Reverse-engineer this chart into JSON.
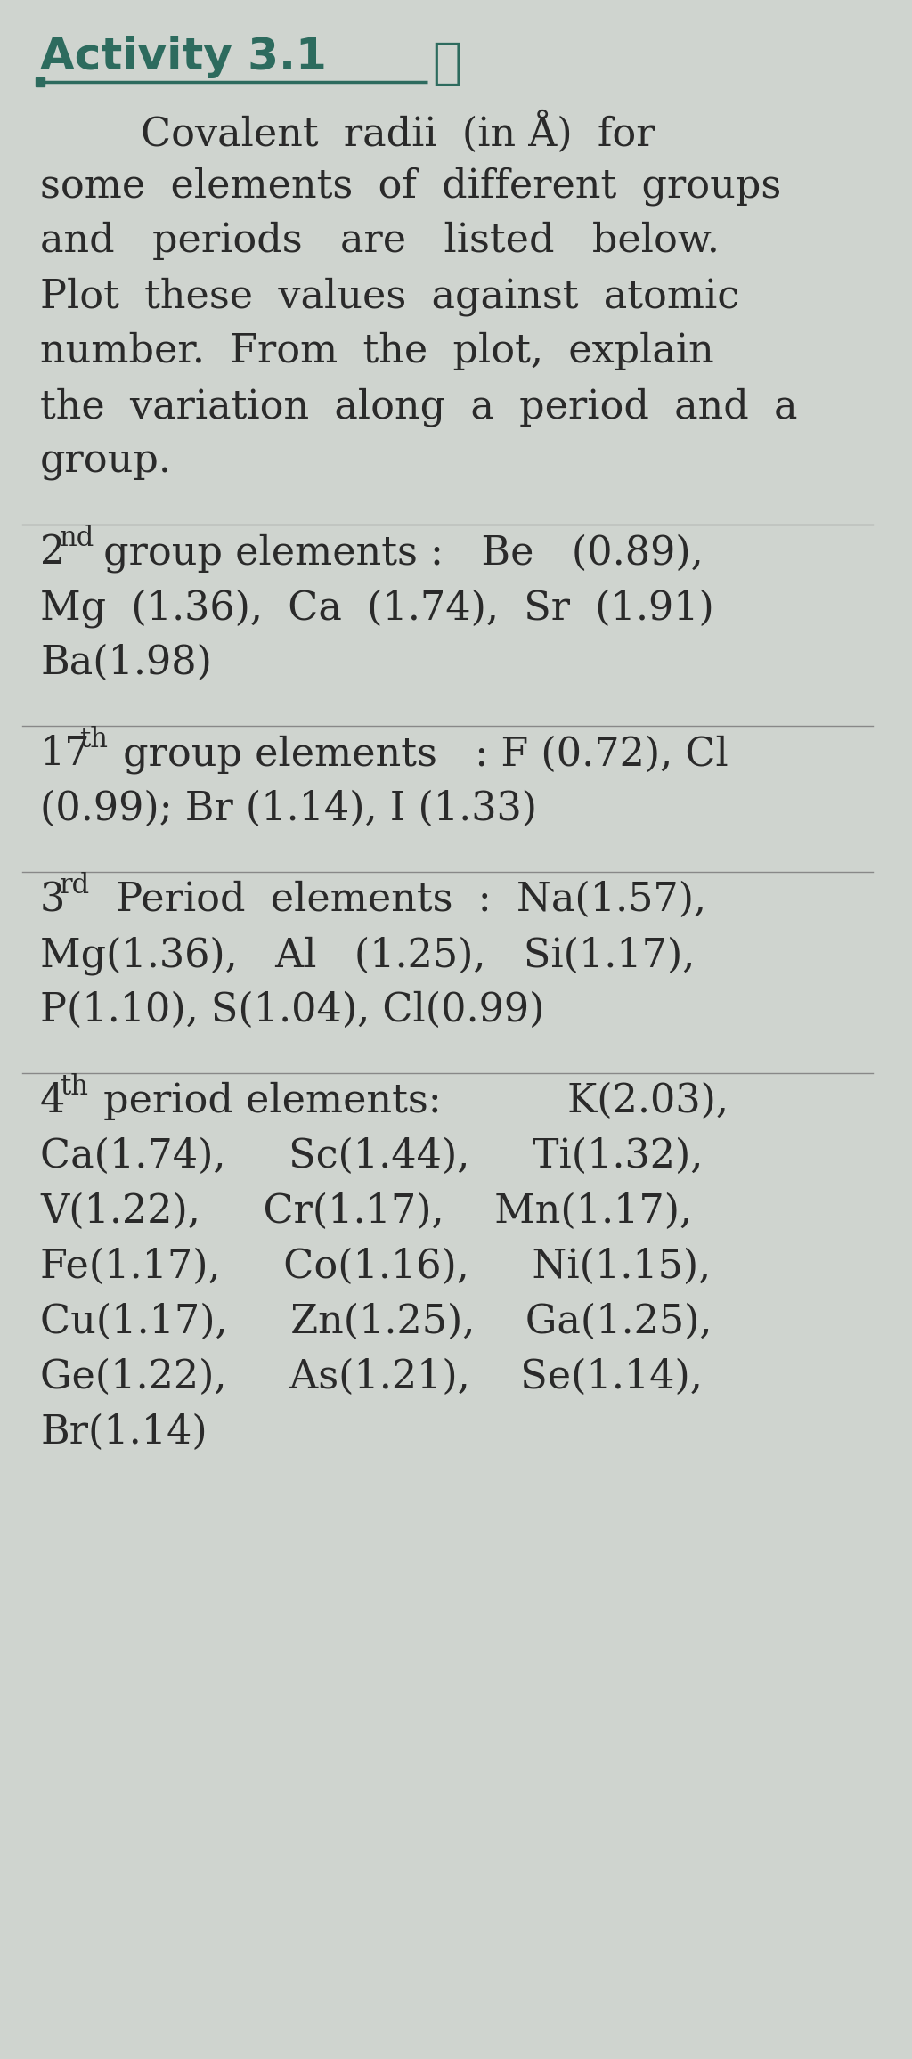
{
  "bg_color": "#cfd4cf",
  "title": "Activity 3.1",
  "title_color": "#2d6b5e",
  "title_fontsize": 36,
  "body_fontsize": 32,
  "sup_fontsize": 22,
  "line_color": "#2d6b5e",
  "text_color": "#2a2a2a",
  "para1_lines": [
    "        Covalent  radii  (in Å)  for",
    "some  elements  of  different  groups",
    "and   periods   are   listed   below.",
    "Plot  these  values  against  atomic",
    "number.  From  the  plot,  explain",
    "the  variation  along  a  period  and  a",
    "group."
  ],
  "sec1_num": "2",
  "sec1_sup": "nd",
  "sec1_text_lines": [
    " group elements :   Be   (0.89),",
    "Mg  (1.36),  Ca  (1.74),  Sr  (1.91)",
    "Ba(1.98)"
  ],
  "sec2_num": "17",
  "sec2_sup": "th",
  "sec2_text_lines": [
    " group elements   : F (0.72), Cl",
    "(0.99); Br (1.14), I (1.33)"
  ],
  "sec3_num": "3",
  "sec3_sup": "rd",
  "sec3_text_lines": [
    "  Period  elements  :  Na(1.57),",
    "Mg(1.36),   Al   (1.25),   Si(1.17),",
    "P(1.10), S(1.04), Cl(0.99)"
  ],
  "sec4_num": "4",
  "sec4_sup": "th",
  "sec4_text_lines": [
    " period elements:          K(2.03),",
    "Ca(1.74),     Sc(1.44),     Ti(1.32),",
    "V(1.22),     Cr(1.17),    Mn(1.17),",
    "Fe(1.17),     Co(1.16),     Ni(1.15),",
    "Cu(1.17),     Zn(1.25),    Ga(1.25),",
    "Ge(1.22),     As(1.21),    Se(1.14),",
    "Br(1.14)"
  ]
}
